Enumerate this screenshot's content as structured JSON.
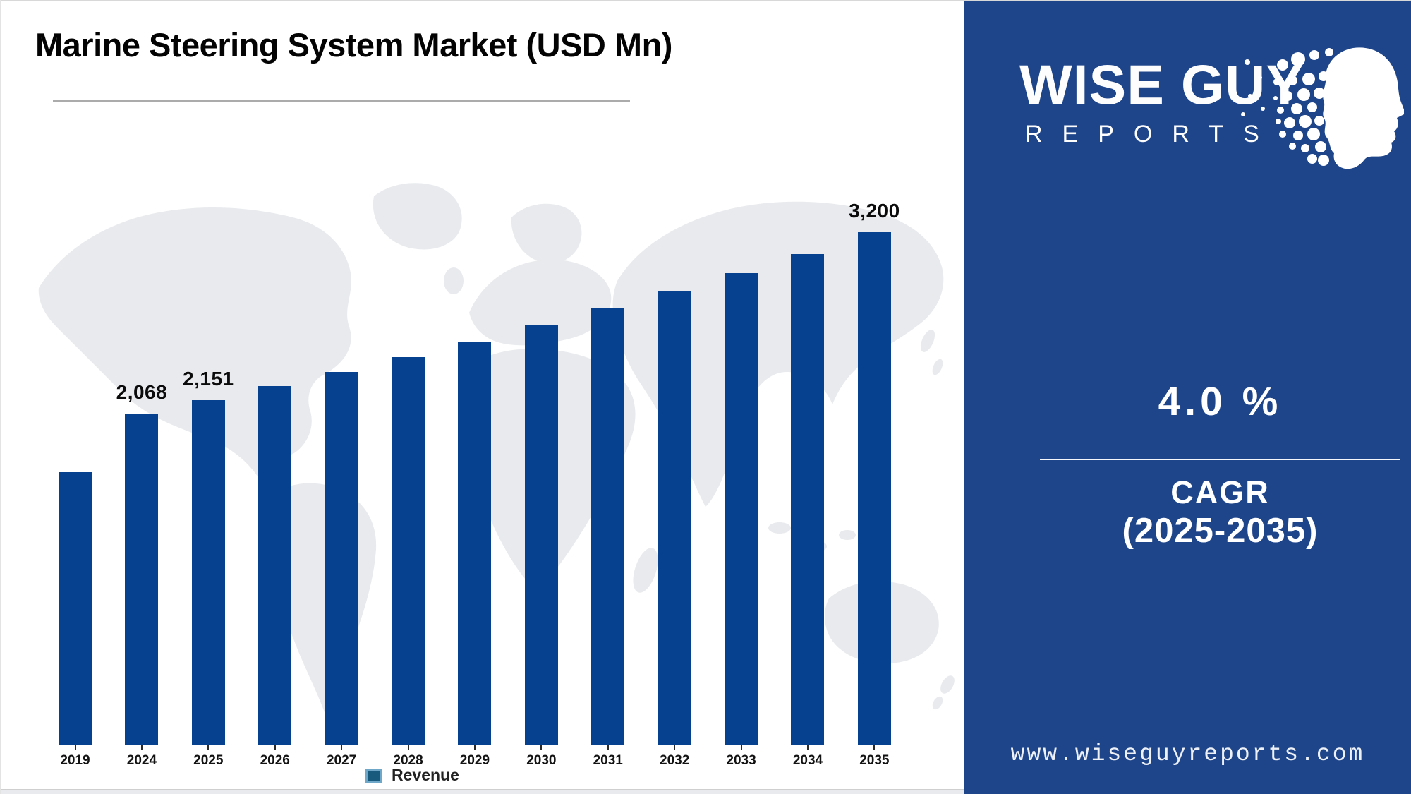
{
  "chart": {
    "title": "Marine Steering System Market (USD Mn)",
    "legend_label": "Revenue"
  },
  "chart_data": {
    "type": "bar",
    "title": "Marine Steering System Market (USD Mn)",
    "unit": "USD Mn",
    "categories": [
      "2019",
      "2024",
      "2025",
      "2026",
      "2027",
      "2028",
      "2029",
      "2030",
      "2031",
      "2032",
      "2033",
      "2034",
      "2035"
    ],
    "values": [
      1700,
      2068,
      2151,
      2237,
      2326,
      2419,
      2516,
      2617,
      2722,
      2831,
      2944,
      3062,
      3200
    ],
    "data_labels": {
      "2024": "2,068",
      "2025": "2,151",
      "2035": "3,200"
    },
    "series_name": "Revenue",
    "bar_color": "#05418f",
    "label_color": "#0b0b0b",
    "legend_position": "bottom",
    "ylim": [
      0,
      3200
    ],
    "grid": false
  },
  "brand": {
    "logo_line1": "WISE GUY",
    "logo_line2": "REPORTS",
    "cagr_value": "4.0 %",
    "cagr_label": "CAGR",
    "cagr_range": "(2025-2035)",
    "website": "www.wiseguyreports.com",
    "panel_color": "#1e4489"
  }
}
